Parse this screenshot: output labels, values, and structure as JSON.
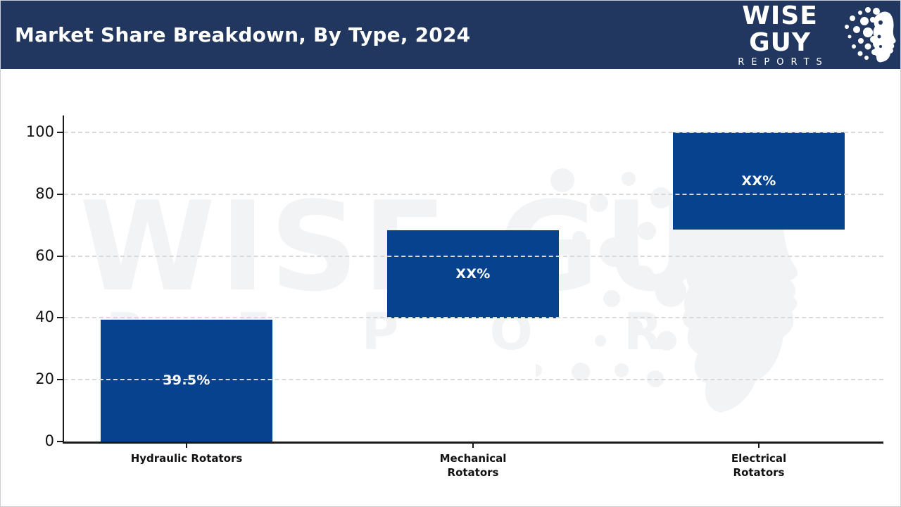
{
  "header": {
    "title": "Market Share Breakdown, By Type, 2024",
    "logo": {
      "line1": "WISE GUY",
      "line2": "REPORTS"
    }
  },
  "watermark": {
    "line1": "WISE GUY",
    "line2": "REPORTS"
  },
  "colors": {
    "header_bg": "#21375f",
    "bar_fill": "#07428f",
    "bar_label": "#ffffff",
    "gridline": "#d9d9d9",
    "axis": "#1a1a1a",
    "watermark": "#f2f3f5"
  },
  "chart_data": {
    "type": "bar",
    "subtype": "waterfall",
    "title": "Market Share Breakdown, By Type, 2024",
    "xlabel": "",
    "ylabel": "",
    "ylim": [
      0,
      100
    ],
    "yticks": [
      0,
      20,
      40,
      60,
      80,
      100
    ],
    "grid": "horizontal-dashed",
    "legend": "none",
    "categories": [
      "Hydraulic Rotators",
      "Mechanical\nRotators",
      "Electrical\nRotators"
    ],
    "segments": [
      {
        "category": "Hydraulic Rotators",
        "start": 0,
        "end": 39.5,
        "label": "39.5%"
      },
      {
        "category": "Mechanical Rotators",
        "start": 39.8,
        "end": 68.4,
        "label": "XX%"
      },
      {
        "category": "Electrical Rotators",
        "start": 68.5,
        "end": 100,
        "label": "XX%"
      }
    ]
  }
}
